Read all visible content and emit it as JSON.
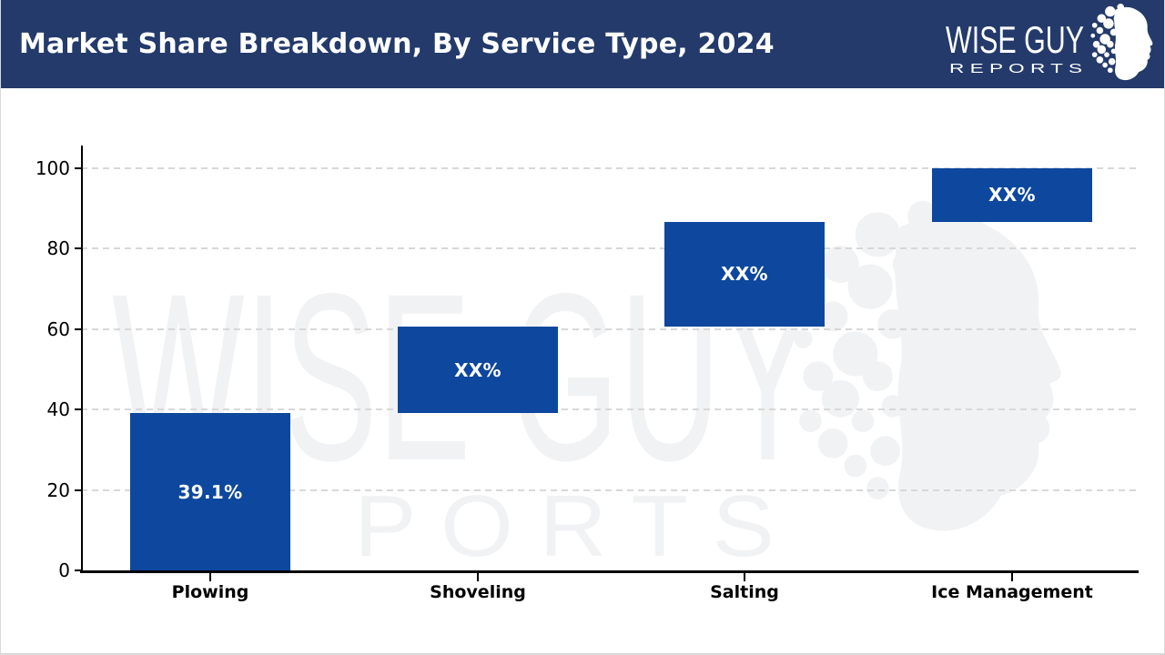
{
  "header": {
    "title": "Market Share Breakdown, By Service Type, 2024",
    "logo": {
      "line1": "WISE GUY",
      "line2": "R E P O R T S"
    }
  },
  "watermark": {
    "line1": "WISE GUY",
    "line2": "P O R T S"
  },
  "colors": {
    "header_bg": "#233a6b",
    "bar": "#0d479e",
    "grid": "#d8d8d8",
    "axis": "#000000",
    "bar_label": "#ffffff",
    "watermark": "#f1f2f4"
  },
  "chart_data": {
    "type": "bar",
    "subtype": "waterfall",
    "title": "Market Share Breakdown, By Service Type, 2024",
    "categories": [
      "Plowing",
      "Shoveling",
      "Salting",
      "Ice Management"
    ],
    "series": [
      {
        "name": "Market share (%)",
        "segments": [
          {
            "category": "Plowing",
            "start": 0,
            "end": 39.1,
            "label": "39.1%"
          },
          {
            "category": "Shoveling",
            "start": 39.1,
            "end": 60.6,
            "label": "XX%"
          },
          {
            "category": "Salting",
            "start": 60.6,
            "end": 86.7,
            "label": "XX%"
          },
          {
            "category": "Ice Management",
            "start": 86.7,
            "end": 100,
            "label": "XX%"
          }
        ]
      }
    ],
    "xlabel": "",
    "ylabel": "",
    "ylim": [
      0,
      105
    ],
    "yticks": [
      0,
      20,
      40,
      60,
      80,
      100
    ],
    "grid": true,
    "grid_style": "dashed",
    "legend": false
  }
}
